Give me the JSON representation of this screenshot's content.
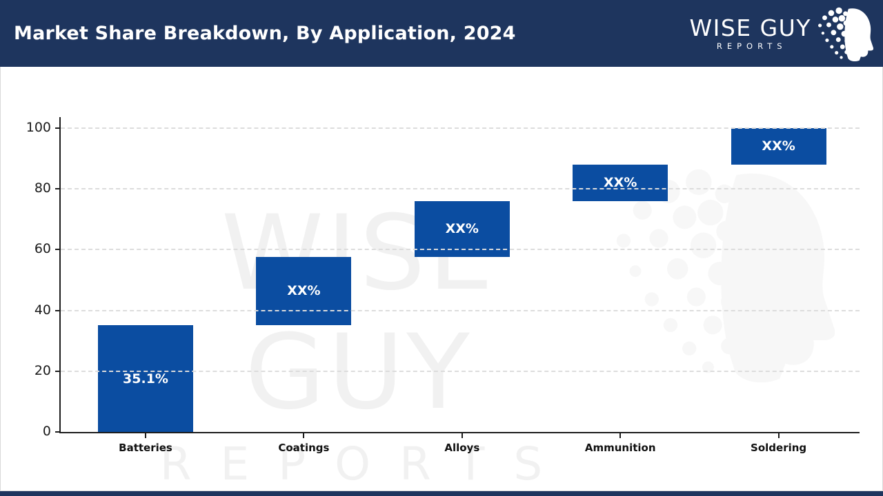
{
  "header": {
    "title": "Market Share Breakdown, By Application, 2024",
    "logo": {
      "line1": "WISE GUY",
      "line2": "REPORTS"
    }
  },
  "watermark": {
    "line1": "WISE GUY",
    "line2": "REPORTS"
  },
  "colors": {
    "header_bg": "#1e355e",
    "footer_bg": "#1e355e",
    "bar": "#0b4da1",
    "axis": "#1c1c1c",
    "grid": "#dcdcdc",
    "bar_label_text": "#ffffff"
  },
  "chart_data": {
    "type": "bar",
    "subtype": "waterfall",
    "title": "Market Share Breakdown, By Application, 2024",
    "xlabel": "",
    "ylabel": "",
    "categories": [
      "Batteries",
      "Coatings",
      "Alloys",
      "Ammunition",
      "Soldering"
    ],
    "segments": [
      {
        "category": "Batteries",
        "start": 0,
        "end": 35.1,
        "label": "35.1%"
      },
      {
        "category": "Coatings",
        "start": 35.1,
        "end": 57.7,
        "label": "XX%"
      },
      {
        "category": "Alloys",
        "start": 57.7,
        "end": 76.0,
        "label": "XX%"
      },
      {
        "category": "Ammunition",
        "start": 76.0,
        "end": 88.0,
        "label": "XX%"
      },
      {
        "category": "Soldering",
        "start": 88.0,
        "end": 100.0,
        "label": "XX%"
      }
    ],
    "yticks": [
      0,
      20,
      40,
      60,
      80,
      100
    ],
    "ylim": [
      0,
      103.6
    ],
    "grid": "horizontal-dashed-over-bars",
    "legend": "none"
  }
}
